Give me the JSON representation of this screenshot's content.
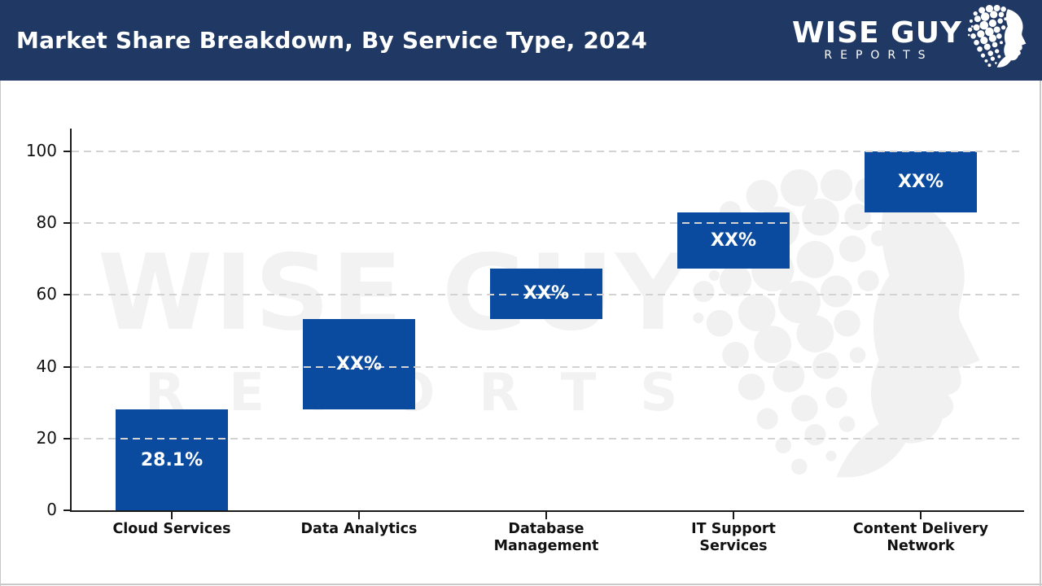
{
  "header": {
    "title": "Market Share Breakdown, By Service Type, 2024",
    "bg_color": "#1F3864",
    "logo": {
      "name": "WISE GUY",
      "subtitle": "REPORTS"
    }
  },
  "watermark": {
    "line1": "WISE GUY",
    "line2": "REPORTS",
    "color": "#F2F2F2"
  },
  "chart_data": {
    "type": "bar",
    "subtype": "waterfall-floating-bars",
    "title": "Market Share Breakdown, By Service Type, 2024",
    "xlabel": "",
    "ylabel": "",
    "ylim": [
      0,
      100
    ],
    "yticks": [
      0,
      20,
      40,
      60,
      80,
      100
    ],
    "grid": "horizontal-dashed",
    "legend": "none",
    "categories": [
      {
        "name": "Cloud Services",
        "lines": [
          "Cloud Services"
        ]
      },
      {
        "name": "Data Analytics",
        "lines": [
          "Data Analytics"
        ]
      },
      {
        "name": "Database Management",
        "lines": [
          "Database",
          "Management"
        ]
      },
      {
        "name": "IT Support Services",
        "lines": [
          "IT Support",
          "Services"
        ]
      },
      {
        "name": "Content Delivery Network",
        "lines": [
          "Content Delivery",
          "Network"
        ]
      }
    ],
    "bars": [
      {
        "category": "Cloud Services",
        "label": "28.1%",
        "start": 0,
        "end": 28.1
      },
      {
        "category": "Data Analytics",
        "label": "XX%",
        "start": 28.1,
        "end": 53.4
      },
      {
        "category": "Database Management",
        "label": "XX%",
        "start": 53.4,
        "end": 67.4
      },
      {
        "category": "IT Support Services",
        "label": "XX%",
        "start": 67.4,
        "end": 82.9
      },
      {
        "category": "Content Delivery Network",
        "label": "XX%",
        "start": 82.9,
        "end": 100
      }
    ],
    "colors": {
      "bar": "#0B4B9F",
      "bar_label": "#FFFFFF",
      "axis": "#1A1A1A",
      "grid": "#D3D3D3"
    }
  }
}
